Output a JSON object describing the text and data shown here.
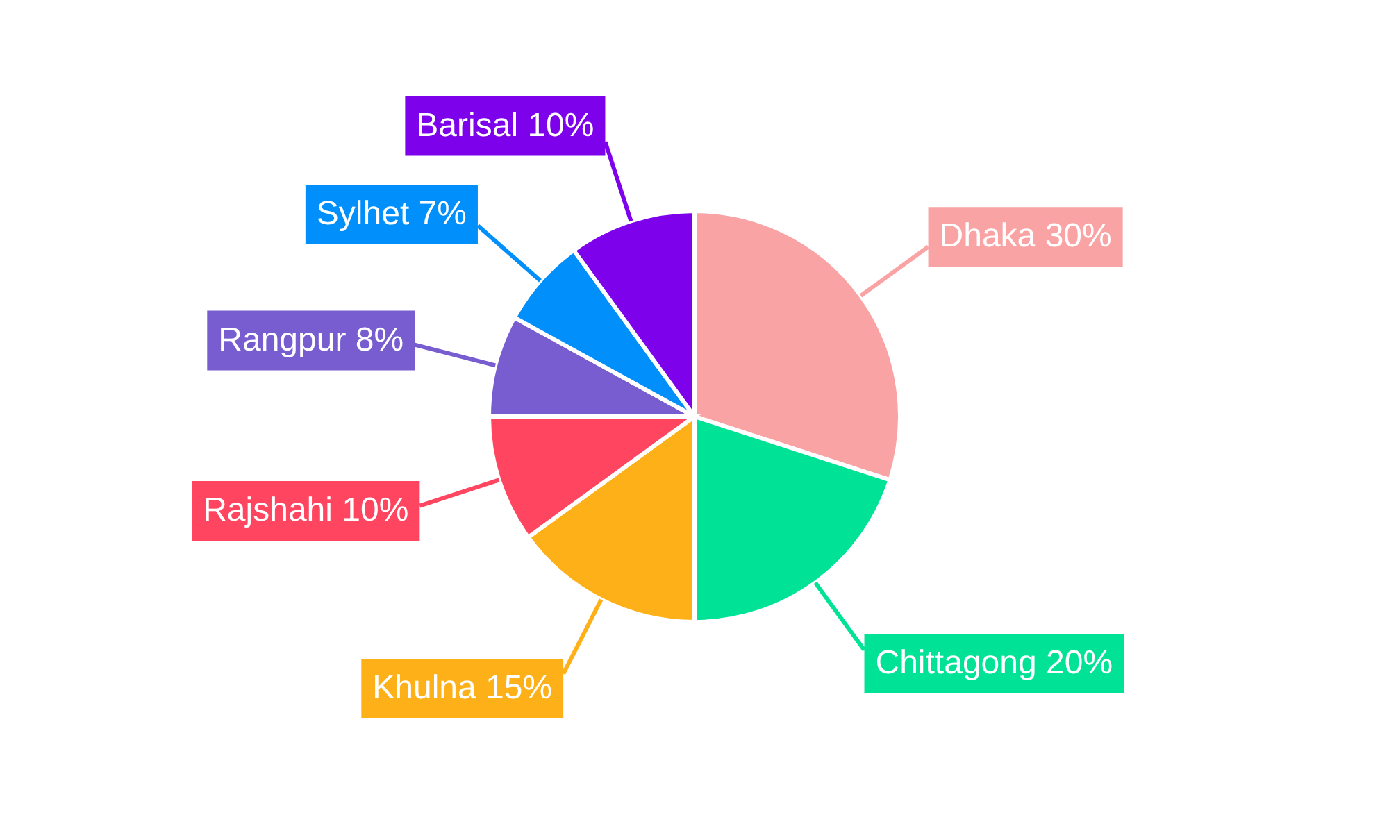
{
  "chart_data": {
    "type": "pie",
    "categories": [
      "Dhaka",
      "Chittagong",
      "Khulna",
      "Rajshahi",
      "Rangpur",
      "Sylhet",
      "Barisal"
    ],
    "values": [
      30,
      20,
      15,
      10,
      8,
      7,
      10
    ],
    "colors": [
      "#f9a3a4",
      "#00e396",
      "#feb019",
      "#ff4560",
      "#775dd0",
      "#008ffb",
      "#7d02eb"
    ],
    "value_labels": [
      "30%",
      "20%",
      "15%",
      "10%",
      "8%",
      "7%",
      "10%"
    ]
  }
}
